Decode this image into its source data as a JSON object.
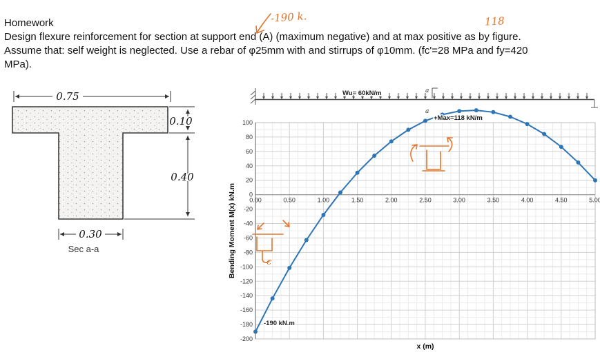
{
  "header": {
    "title": "Homework",
    "line1": "Design flexure reinforcement for section at support end (A) (maximum negative) and at max positive as by figure.",
    "line2": "Assume that:  self weight is neglected. Use a rebar of φ25mm with and stirrups of φ10mm. (fc'=28 MPa and fy=420",
    "line3": "MPa)."
  },
  "handwriting": {
    "moment_note": "-190 k.",
    "number_note": "118",
    "letter_c": "c"
  },
  "section": {
    "width_top": "0.75",
    "flange_thickness": "0.10",
    "web_height": "0.40",
    "web_width": "0.30",
    "caption": "Sec a-a"
  },
  "chart_data": {
    "type": "line",
    "title": "",
    "xlabel": "x (m)",
    "ylabel": "Bending Moment M(x) kN.m",
    "load_label": "Wu= 60kN/m",
    "max_label": "+Max=118 kN/m",
    "min_label": "-190 kN.m",
    "section_mark": "a",
    "line_color": "#2e75b6",
    "orange_color": "#e2762d",
    "grid": true,
    "xlim": [
      0,
      5
    ],
    "ylim": [
      -200,
      100
    ],
    "x_ticks": [
      0,
      0.5,
      1,
      1.5,
      2,
      2.5,
      3,
      3.5,
      4,
      4.5,
      5
    ],
    "x_tick_labels": [
      "0.00",
      "0.50",
      "1.00",
      "1.50",
      "2.00",
      "2.50",
      "3.00",
      "3.50",
      "4.00",
      "4.50",
      "5.00"
    ],
    "y_ticks": [
      100,
      80,
      60,
      40,
      20,
      0,
      -20,
      -40,
      -60,
      -80,
      -100,
      -120,
      -140,
      -160,
      -180,
      -200
    ],
    "x": [
      0,
      0.25,
      0.5,
      0.75,
      1,
      1.25,
      1.5,
      1.75,
      2,
      2.25,
      2.5,
      2.75,
      3,
      3.25,
      3.5,
      3.75,
      4,
      4.25,
      4.5,
      4.75,
      5
    ],
    "y": [
      -190,
      -143.9,
      -101.5,
      -62.9,
      -28,
      3.1,
      30.5,
      54.1,
      74,
      90.1,
      102.5,
      111.1,
      116,
      117.1,
      114.5,
      108.1,
      98,
      84.1,
      66.5,
      44.7,
      20
    ],
    "min_value": -190,
    "max_value": 118,
    "load_kn_per_m": 60
  }
}
